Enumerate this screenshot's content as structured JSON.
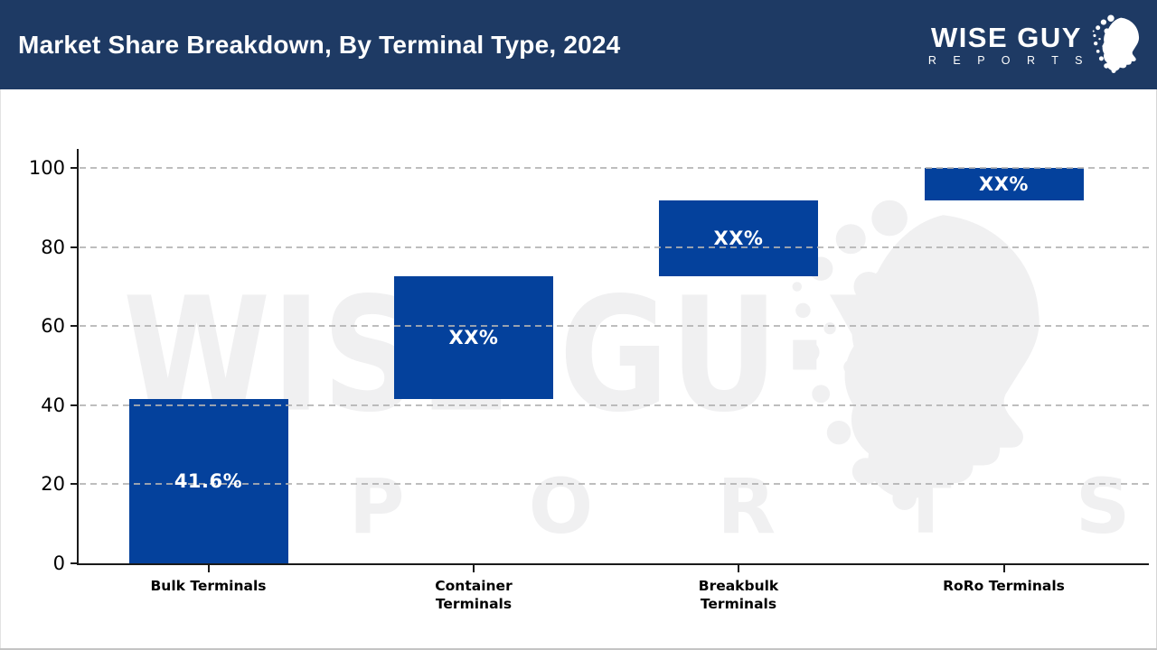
{
  "header": {
    "title": "Market Share Breakdown, By Terminal Type, 2024",
    "logo": {
      "line1": "WISE GUY",
      "line2": "R E P O R T S"
    },
    "bg_color": "#1e3a64"
  },
  "watermark": {
    "line1": "WISE GU·Y",
    "line2": "P O R T S"
  },
  "chart_data": {
    "type": "bar",
    "subtype": "waterfall",
    "title": "Market Share Breakdown, By Terminal Type, 2024",
    "unit": "%",
    "categories": [
      "Bulk Terminals",
      "Container Terminals",
      "Breakbulk Terminals",
      "RoRo Terminals"
    ],
    "segments": [
      {
        "category_lines": [
          "Bulk Terminals"
        ],
        "start": 0,
        "end": 41.6,
        "value": 41.6,
        "label": "41.6%"
      },
      {
        "category_lines": [
          "Container",
          "Terminals"
        ],
        "start": 41.6,
        "end": 72.6,
        "value": 31.0,
        "label": "XX%"
      },
      {
        "category_lines": [
          "Breakbulk",
          "Terminals"
        ],
        "start": 72.6,
        "end": 91.8,
        "value": 19.2,
        "label": "XX%"
      },
      {
        "category_lines": [
          "RoRo Terminals"
        ],
        "start": 91.8,
        "end": 100,
        "value": 8.2,
        "label": "XX%"
      }
    ],
    "ylim": [
      0,
      100
    ],
    "yticks": [
      0,
      20,
      40,
      60,
      80,
      100
    ],
    "grid": {
      "horizontal": true,
      "style": "dashed"
    },
    "legend": "none",
    "bar_color": "#04419c",
    "bar_label_color": "#ffffff"
  }
}
